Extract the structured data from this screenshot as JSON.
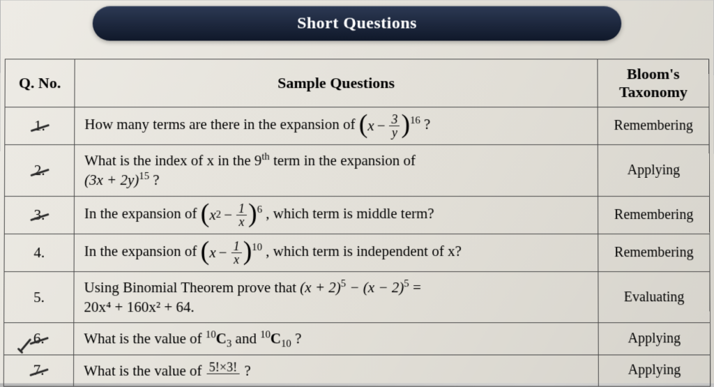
{
  "header": {
    "title": "Short Questions",
    "pill_bg": "#1a2845",
    "text_color": "#ffffff"
  },
  "table": {
    "border_color": "#4a4a4a",
    "bg_color": "#e8e5dd",
    "columns": [
      {
        "key": "qno",
        "label": "Q. No.",
        "width": 100,
        "align": "center"
      },
      {
        "key": "sample",
        "label": "Sample Questions",
        "align": "left"
      },
      {
        "key": "bloom",
        "label": "Bloom's Taxonomy",
        "width": 160,
        "align": "center"
      }
    ],
    "rows": [
      {
        "qno": "1.",
        "qno_mark": "strike",
        "question_prefix": "How many terms are there in the expansion of ",
        "expr": {
          "base": "x",
          "op": "−",
          "frac_num": "3",
          "frac_den": "y",
          "power": "16"
        },
        "question_suffix": " ?",
        "bloom": "Remembering"
      },
      {
        "qno": "2.",
        "qno_mark": "strike",
        "line1": "What is the index of x in the 9",
        "line1_sup": "th",
        "line1_end": " term in the expansion of",
        "line2_expr": "(3x + 2y)",
        "line2_pow": "15",
        "line2_end": " ?",
        "bloom": "Applying"
      },
      {
        "qno": "3.",
        "qno_mark": "strike",
        "question_prefix": "In the expansion of ",
        "expr": {
          "base": "x",
          "base_sup": "2",
          "op": "−",
          "frac_num": "1",
          "frac_den": "x",
          "power": "6"
        },
        "question_suffix": ", which term is middle term?",
        "bloom": "Remembering"
      },
      {
        "qno": "4.",
        "question_prefix": "In the expansion of ",
        "expr": {
          "base": "x",
          "op": "−",
          "frac_num": "1",
          "frac_den": "x",
          "power": "10"
        },
        "question_suffix": ", which term is independent of x?",
        "bloom": "Remembering"
      },
      {
        "qno": "5.",
        "line1_a": "Using Binomial Theorem prove that ",
        "line1_b": "(x + 2)",
        "line1_b_pow": "5",
        "line1_c": " − (x − 2)",
        "line1_c_pow": "5",
        "line1_d": " =",
        "line2": "20x⁴ + 160x² + 64.",
        "bloom": "Evaluating"
      },
      {
        "qno": "6.",
        "qno_mark": "tick",
        "question_prefix": "What is the value of ",
        "c1_pre": "10",
        "c1_mid": "C",
        "c1_sub": "3",
        "mid": " and ",
        "c2_pre": "10",
        "c2_mid": "C",
        "c2_sub": "10",
        "question_suffix": " ?",
        "bloom": "Applying"
      },
      {
        "qno": "7.",
        "qno_mark": "strike-partial",
        "question_prefix": "What is the value of ",
        "frac_num": "5!×3!",
        "question_suffix": " ?",
        "bloom": "Applying"
      }
    ]
  }
}
